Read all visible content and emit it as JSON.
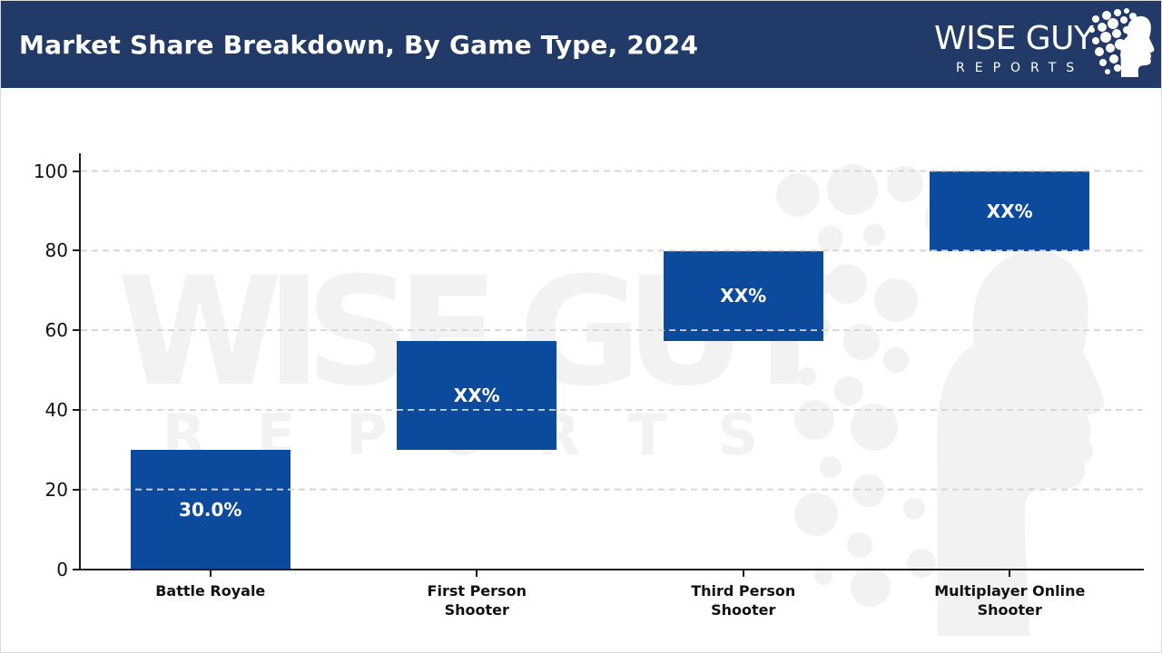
{
  "header": {
    "title": "Market Share Breakdown, By Game Type, 2024",
    "brand": {
      "line1": "WISE GUY",
      "line2": "REPORTS"
    }
  },
  "watermark": {
    "line1": "WISE GUY",
    "line2": "REPORTS"
  },
  "chart_data": {
    "type": "bar",
    "subtype": "waterfall",
    "title": "Market Share Breakdown, By Game Type, 2024",
    "xlabel": "",
    "ylabel": "",
    "categories": [
      "Battle Royale",
      "First Person\nShooter",
      "Third Person\nShooter",
      "Multiplayer Online\nShooter"
    ],
    "bars": [
      {
        "category": "Battle Royale",
        "base": 0,
        "top": 30.0,
        "label": "30.0%"
      },
      {
        "category": "First Person Shooter",
        "base": 30.0,
        "top": 57.3,
        "label": "XX%"
      },
      {
        "category": "Third Person Shooter",
        "base": 57.3,
        "top": 79.9,
        "label": "XX%"
      },
      {
        "category": "Multiplayer Online Shooter",
        "base": 79.9,
        "top": 100.0,
        "label": "XX%"
      }
    ],
    "yticks": [
      0,
      20,
      40,
      60,
      80,
      100
    ],
    "ylim": [
      0,
      104.5
    ],
    "grid": "horizontal dashed gridlines drawn above bars",
    "legend": "none",
    "colors": {
      "bar": "#0c4a9e",
      "header_background": "#223a68",
      "header_text": "#ffffff",
      "bar_label_text": "#ffffff",
      "axis": "#1c1c1c",
      "gridline": "#d4d4d4",
      "watermark": "#f2f2f2"
    }
  }
}
